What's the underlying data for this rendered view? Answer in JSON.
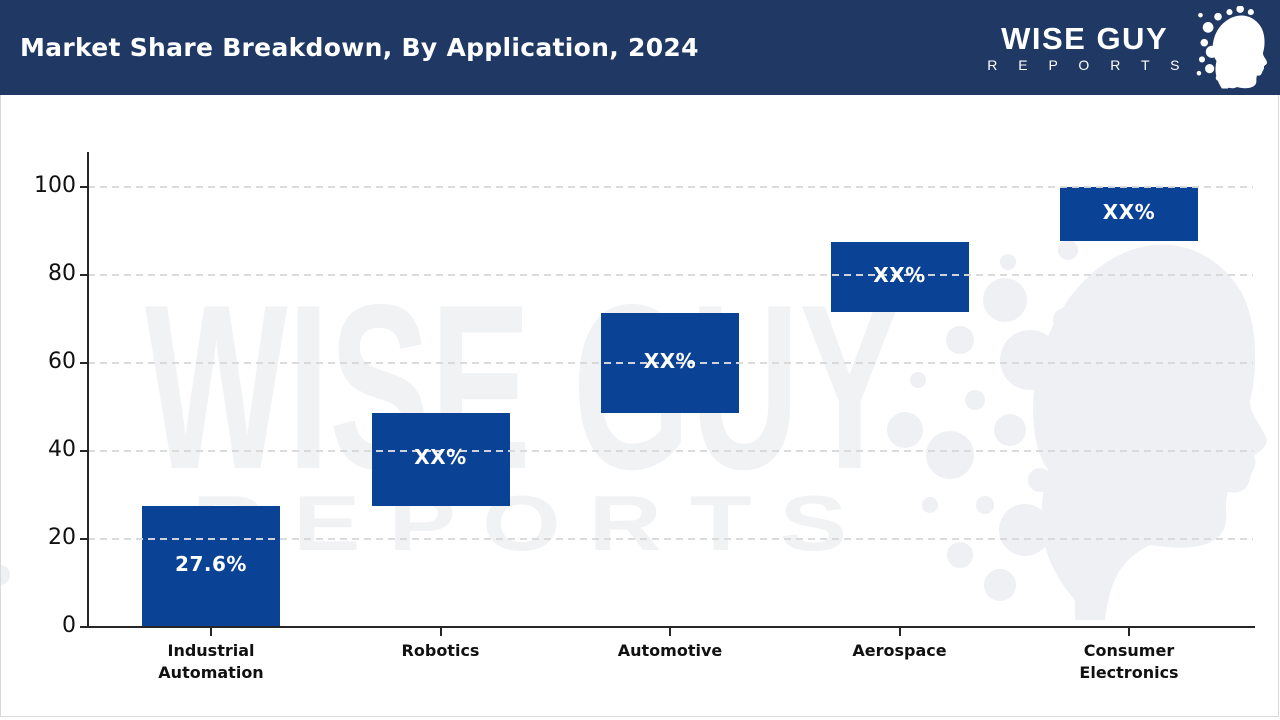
{
  "header": {
    "title": "Market Share Breakdown, By Application, 2024",
    "logo_line1": "WISE GUY",
    "logo_line2": "R E P O R T S"
  },
  "watermark": {
    "line1": "WISE GUY",
    "line2": "R E P O R T S"
  },
  "colors": {
    "header_bg": "#1f3864",
    "bar": "#0a4296",
    "gridline": "#d9d9d9",
    "axis": "#262626",
    "value_label": "#ffffff",
    "watermark": "#f1f2f4"
  },
  "chart_data": {
    "type": "bar",
    "subtype": "waterfall-floating-bars",
    "title": "Market Share Breakdown, By Application, 2024",
    "categories": [
      "Industrial Automation",
      "Robotics",
      "Automotive",
      "Aerospace",
      "Consumer Electronics"
    ],
    "segments": [
      {
        "category": "Industrial Automation",
        "start": 0,
        "end": 27.6,
        "label": "27.6%"
      },
      {
        "category": "Robotics",
        "start": 27.6,
        "end": 48.6,
        "label": "XX%"
      },
      {
        "category": "Automotive",
        "start": 48.6,
        "end": 71.4,
        "label": "XX%"
      },
      {
        "category": "Aerospace",
        "start": 71.6,
        "end": 87.5,
        "label": "XX%"
      },
      {
        "category": "Consumer Electronics",
        "start": 87.7,
        "end": 100,
        "label": "XX%"
      }
    ],
    "yticks": [
      0,
      20,
      40,
      60,
      80,
      100
    ],
    "ylim": [
      0,
      108
    ],
    "xlabel": "",
    "ylabel": "",
    "grid": "horizontal-dashed",
    "legend": "none"
  }
}
